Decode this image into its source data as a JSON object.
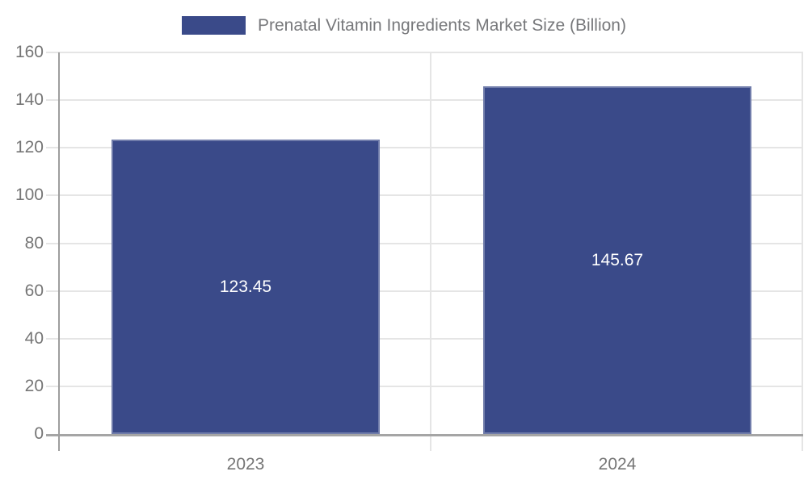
{
  "chart_data": {
    "type": "bar",
    "title": "Prenatal Vitamin Ingredients Market Size (Billion)",
    "legend": {
      "label": "Prenatal Vitamin Ingredients Market Size (Billion)",
      "position": "top"
    },
    "categories": [
      "2023",
      "2024"
    ],
    "values": [
      123.45,
      145.67
    ],
    "value_labels": [
      "123.45",
      "145.67"
    ],
    "xlabel": "",
    "ylabel": "",
    "ylim": [
      0,
      160
    ],
    "yticks": [
      0,
      20,
      40,
      60,
      80,
      100,
      120,
      140,
      160
    ],
    "grid": true,
    "colors": {
      "bar": "#3A4A89",
      "value_label": "#FFFFFF",
      "grid_line": "#E5E5E5",
      "axis_line": "#9E9E9E",
      "x_axis_line": "#A5A5A5",
      "tick_label": "#757575",
      "legend_text": "#77787B",
      "background": "#FFFFFF"
    }
  }
}
